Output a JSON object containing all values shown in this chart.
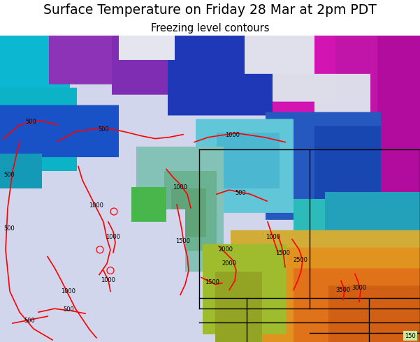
{
  "title": "Surface Temperature on Friday 28 Mar at 2pm PDT",
  "subtitle": "Freezing level contours",
  "title_fontsize": 13.5,
  "subtitle_fontsize": 10.5,
  "fig_width": 6.01,
  "fig_height": 4.9,
  "dpi": 100,
  "title_bg": "#ffffff",
  "contour_color": "#ff0000",
  "contour_label_size": 6
}
